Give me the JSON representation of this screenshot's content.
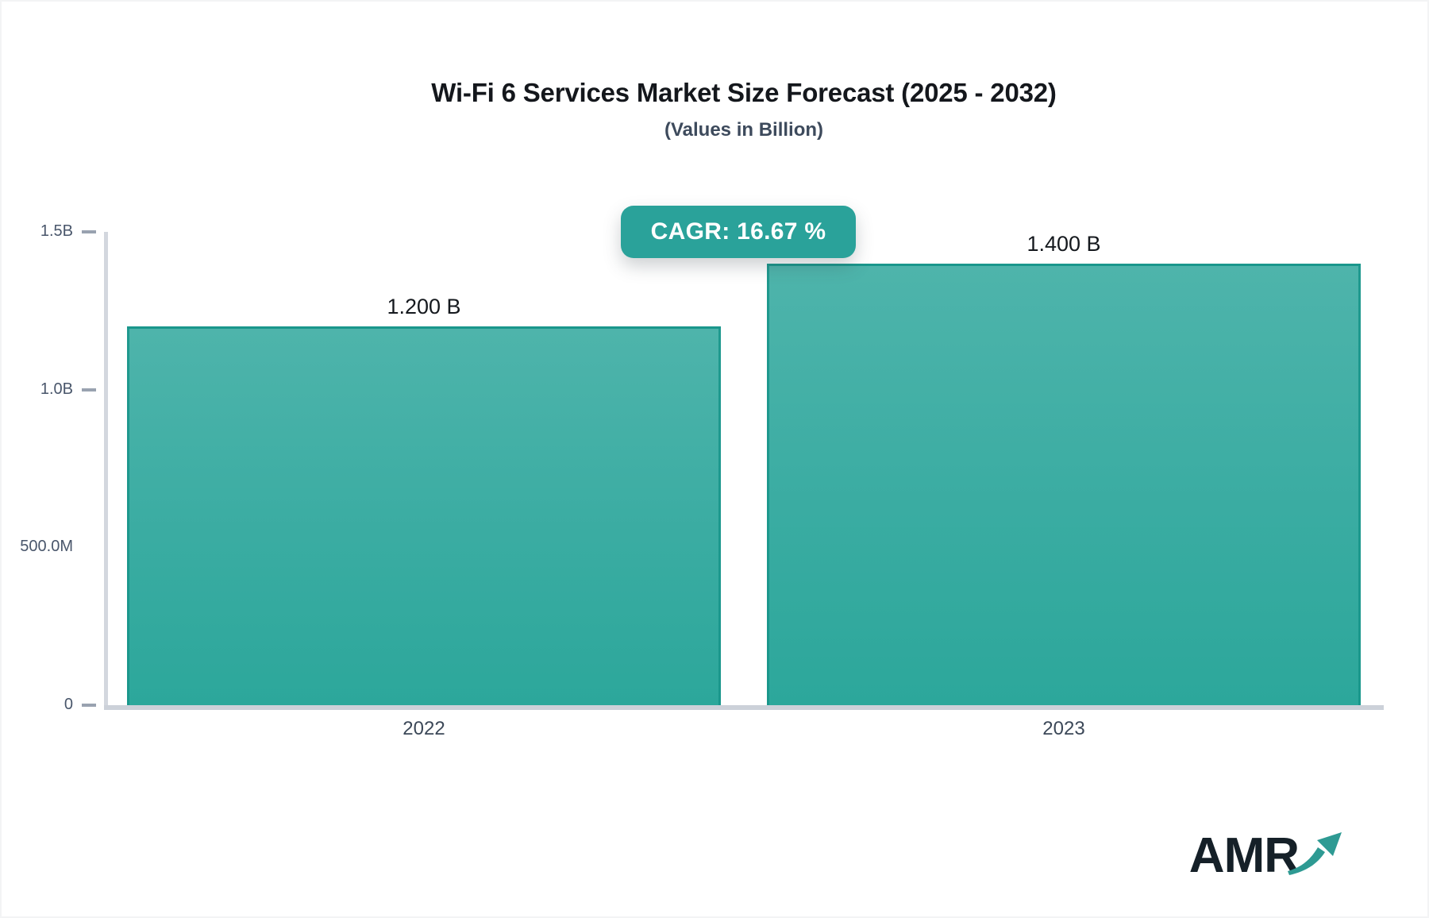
{
  "header": {
    "title": "Wi-Fi 6 Services Market Size Forecast (2025 - 2032)",
    "subtitle": "(Values in Billion)"
  },
  "cagr_badge": {
    "label": "CAGR: 16.67 %",
    "background": "#2aa29a",
    "text_color": "#ffffff"
  },
  "chart_data": {
    "type": "bar",
    "title": "Wi-Fi 6 Services Market Size Forecast (2025 - 2032)",
    "subtitle": "(Values in Billion)",
    "unit": "Billion",
    "categories": [
      "2022",
      "2023"
    ],
    "values": [
      1.2,
      1.4
    ],
    "value_labels": [
      "1.200 B",
      "1.400 B"
    ],
    "cagr_percent": 16.67,
    "ylim": [
      0,
      1.5
    ],
    "y_ticks": [
      {
        "label": "1.5B",
        "value": 1.5,
        "tick_visible": true
      },
      {
        "label": "1.0B",
        "value": 1.0,
        "tick_visible": true
      },
      {
        "label": "500.0M",
        "value": 0.5,
        "tick_visible": false
      },
      {
        "label": "0",
        "value": 0.0,
        "tick_visible": true
      }
    ],
    "grid": false,
    "legend": false,
    "bar_color_top": "#4eb4ab",
    "bar_color_bottom": "#2ca79b",
    "bar_edge_color": "#18948a",
    "axis_color": "#d3d7de"
  },
  "logo": {
    "text": "AMR",
    "text_color": "#152028",
    "arrow_color": "#2e9a93",
    "arrow_icon": "trend-up-arrow"
  }
}
